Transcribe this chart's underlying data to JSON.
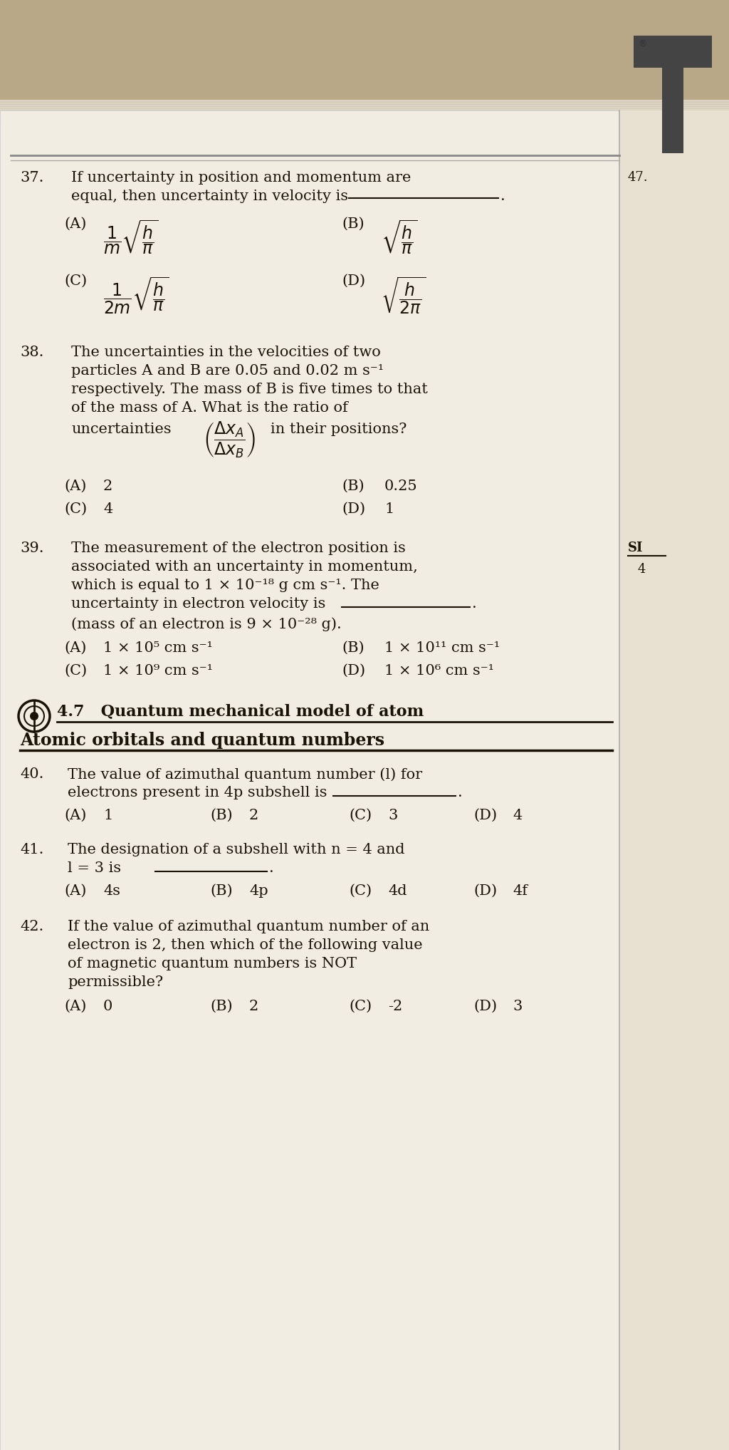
{
  "bg_top_color": "#c8b89a",
  "bg_page_color": "#e8e0d0",
  "page_white": "#f2ede3",
  "text_color": "#1a1205",
  "title_section": "4.7   Quantum mechanical model of atom",
  "subtitle_section": "Atomic orbitals and quantum numbers",
  "q37_text1": "If uncertainty in position and momentum are",
  "q37_text2": "equal, then uncertainty in velocity is",
  "q38_line1": "The uncertainties in the velocities of two",
  "q38_line2": "particles A and B are 0.05 and 0.02 m s⁻¹",
  "q38_line3": "respectively. The mass of B is five times to that",
  "q38_line4": "of the mass of A. What is the ratio of",
  "q38_line5": "uncertainties",
  "q38_line6": "in their positions?",
  "q39_line1": "The measurement of the electron position is",
  "q39_line2": "associated with an uncertainty in momentum,",
  "q39_line3": "which is equal to 1 × 10⁻¹⁸ g cm s⁻¹. The",
  "q39_line4": "uncertainty in electron velocity is",
  "q39_line5": "(mass of an electron is 9 × 10⁻²⁸ g).",
  "q40_line1": "The value of azimuthal quantum number (l) for",
  "q40_line2": "electrons present in 4p subshell is",
  "q41_line1": "The designation of a subshell with n = 4 and",
  "q41_line2": "l = 3 is",
  "q42_line1": "If the value of azimuthal quantum number of an",
  "q42_line2": "electron is 2, then which of the following value",
  "q42_line3": "of magnetic quantum numbers is NOT",
  "q42_line4": "permissible?"
}
